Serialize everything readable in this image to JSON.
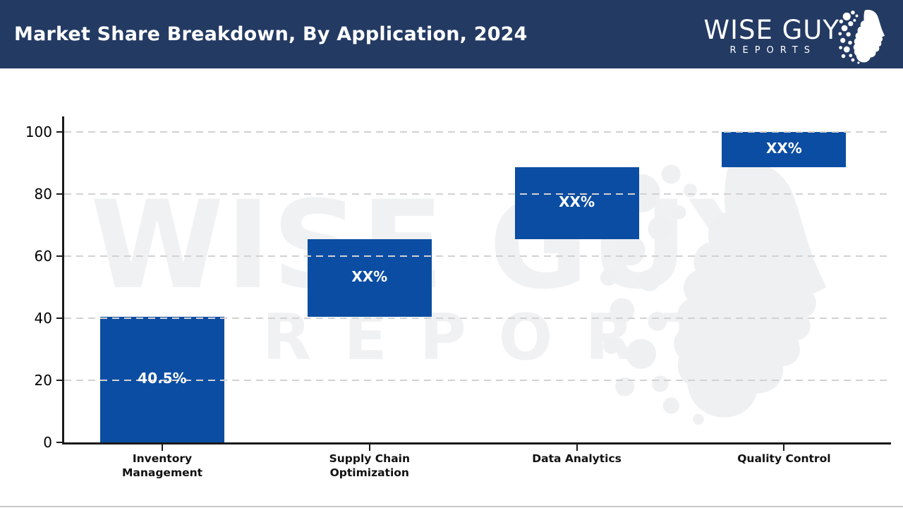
{
  "header": {
    "title": "Market Share Breakdown, By Application, 2024",
    "logo": {
      "name": "WISE GUY",
      "sub": "REPORTS"
    }
  },
  "watermark": {
    "line1": "WISE GUY",
    "line2": "REPORTS"
  },
  "chart_data": {
    "type": "bar",
    "subtype": "waterfall",
    "title": "Market Share Breakdown, By Application, 2024",
    "categories": [
      "Inventory Management",
      "Supply Chain Optimization",
      "Data Analytics",
      "Quality Control"
    ],
    "category_lines": [
      [
        "Inventory",
        "Management"
      ],
      [
        "Supply Chain",
        "Optimization"
      ],
      [
        "Data Analytics"
      ],
      [
        "Quality Control"
      ]
    ],
    "segments": [
      {
        "category": "Inventory Management",
        "start": 0,
        "end": 40.5,
        "label": "40.5%"
      },
      {
        "category": "Supply Chain Optimization",
        "start": 40.5,
        "end": 65.5,
        "label": "XX%"
      },
      {
        "category": "Data Analytics",
        "start": 65.5,
        "end": 88.5,
        "label": "XX%"
      },
      {
        "category": "Quality Control",
        "start": 88.5,
        "end": 100,
        "label": "XX%"
      }
    ],
    "y_ticks": [
      0,
      20,
      40,
      60,
      80,
      100
    ],
    "ylim": [
      0,
      105
    ],
    "xlabel": "",
    "ylabel": "",
    "grid": true,
    "legend": false,
    "colors": {
      "bar": "#0b4da2",
      "bar_label": "#ffffff",
      "grid": "#d2d2d2",
      "axis": "#1a1a1a",
      "header_bg": "#233a63",
      "header_text": "#ffffff",
      "watermark": "#f0f1f3"
    }
  }
}
